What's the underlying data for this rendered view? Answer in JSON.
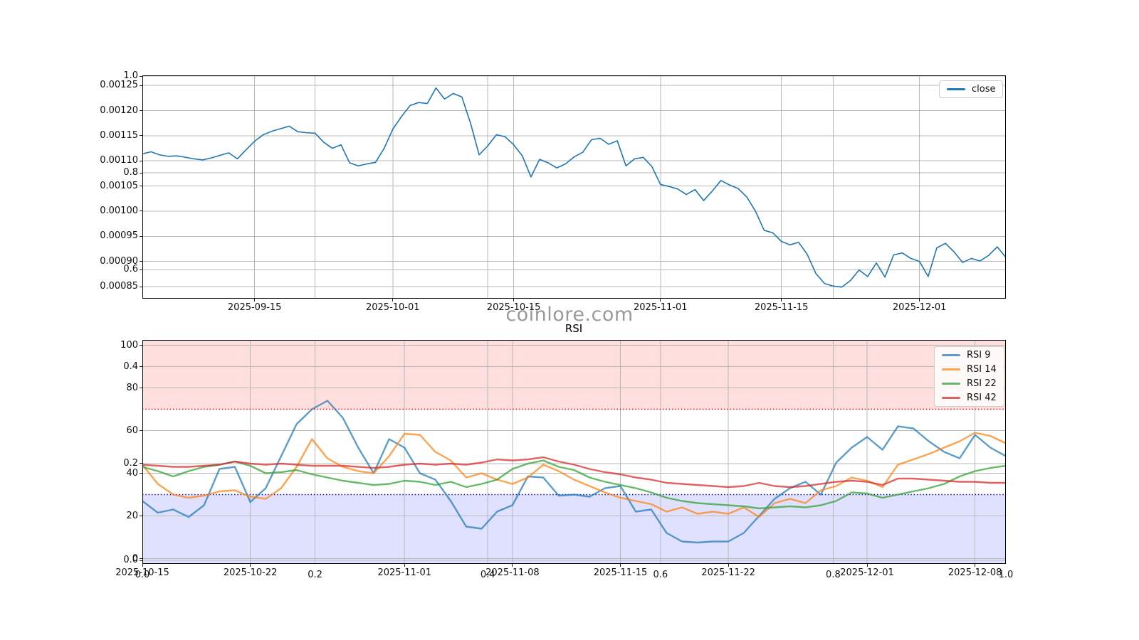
{
  "figure": {
    "background": "#ffffff"
  },
  "watermark": {
    "text": "coinlore.com",
    "color": "#9a9a9a"
  },
  "hidden_axis": {
    "x_ticks": [
      "0.0",
      "0.2",
      "0.4",
      "0.6",
      "0.8",
      "1.0"
    ],
    "y_ticks": [
      "1.0",
      "0.8",
      "0.6",
      "0.4",
      "0.2",
      "0.0"
    ]
  },
  "colors": {
    "close": "#1f77b4",
    "rsi9": "#1f77b4",
    "rsi14": "#ff7f0e",
    "rsi22": "#2ca02c",
    "rsi42": "#d62728",
    "overbought_line": "#ff0000",
    "oversold_line": "#0000cd",
    "overbought_band": "rgba(255,0,0,0.13)",
    "oversold_band": "rgba(0,0,255,0.12)",
    "grid": "#b8b8b8"
  },
  "chart_data": [
    {
      "type": "line",
      "title": "",
      "legend": [
        "close"
      ],
      "legend_position": "upper right",
      "grid": true,
      "x_start": "2025-09-02",
      "x_end": "2025-12-11",
      "x_tick_labels": [
        "2025-09-15",
        "2025-10-01",
        "2025-10-15",
        "2025-11-01",
        "2025-11-15",
        "2025-12-01"
      ],
      "y_tick_values": [
        0.00085,
        0.0009,
        0.00095,
        0.001,
        0.00105,
        0.0011,
        0.00115,
        0.0012,
        0.00125
      ],
      "y_tick_decimals": 5,
      "ylim": [
        0.000826,
        0.00127
      ],
      "series": [
        {
          "name": "close",
          "color": "#1f77b4",
          "width": 1.6,
          "opacity": 1,
          "values": [
            0.001114,
            0.001118,
            0.001112,
            0.001109,
            0.00111,
            0.001107,
            0.001104,
            0.001102,
            0.001106,
            0.001111,
            0.001116,
            0.001104,
            0.001122,
            0.001139,
            0.001152,
            0.001159,
            0.001164,
            0.001169,
            0.001158,
            0.001156,
            0.001155,
            0.001137,
            0.001125,
            0.001132,
            0.001096,
            0.00109,
            0.001094,
            0.001097,
            0.001125,
            0.001163,
            0.001188,
            0.00121,
            0.001216,
            0.001214,
            0.001245,
            0.001223,
            0.001234,
            0.001227,
            0.001175,
            0.001112,
            0.00113,
            0.001152,
            0.001148,
            0.001132,
            0.00111,
            0.001068,
            0.001103,
            0.001096,
            0.001086,
            0.001094,
            0.001108,
            0.001117,
            0.001142,
            0.001145,
            0.001133,
            0.00114,
            0.00109,
            0.001104,
            0.001107,
            0.001089,
            0.001053,
            0.001049,
            0.001044,
            0.001033,
            0.001043,
            0.001021,
            0.00104,
            0.001061,
            0.001052,
            0.001045,
            0.001028,
            0.001,
            0.000962,
            0.000957,
            0.00094,
            0.000933,
            0.000938,
            0.000914,
            0.000876,
            0.000856,
            0.000851,
            0.000849,
            0.000862,
            0.000883,
            0.00087,
            0.000897,
            0.000869,
            0.000913,
            0.000917,
            0.000906,
            0.0009,
            0.00087,
            0.000927,
            0.000936,
            0.000919,
            0.000898,
            0.000906,
            0.000901,
            0.000912,
            0.000929,
            0.000908
          ]
        }
      ]
    },
    {
      "type": "line",
      "title": "RSI",
      "legend": [
        "RSI 9",
        "RSI 14",
        "RSI 22",
        "RSI 42"
      ],
      "legend_position": "upper right",
      "grid": true,
      "x_start": "2025-10-15",
      "x_end": "2025-12-10",
      "x_tick_labels": [
        "2025-10-15",
        "2025-10-22",
        "2025-11-01",
        "2025-11-08",
        "2025-11-15",
        "2025-11-22",
        "2025-12-01",
        "2025-12-08"
      ],
      "y_tick_values": [
        0,
        20,
        40,
        60,
        80,
        100
      ],
      "y_tick_decimals": 0,
      "ylim": [
        -2.5,
        102.5
      ],
      "overbought_level": 70,
      "oversold_level": 30,
      "series": [
        {
          "name": "RSI 9",
          "color": "#1f77b4",
          "width": 2.4,
          "opacity": 0.72,
          "values": [
            27,
            21.5,
            23,
            19.5,
            25,
            42,
            43,
            26.5,
            33,
            48,
            63,
            70,
            74,
            66,
            52,
            40,
            56,
            52,
            40,
            37,
            27,
            15,
            14,
            22,
            25,
            38.5,
            38,
            29.5,
            30,
            29,
            33,
            34,
            22,
            23,
            12,
            8,
            7.5,
            8,
            8,
            12,
            20,
            28,
            33,
            36,
            30,
            45,
            52,
            57,
            51,
            62,
            61,
            55,
            50,
            47,
            58,
            52,
            48
          ]
        },
        {
          "name": "RSI 14",
          "color": "#ff7f0e",
          "width": 2.4,
          "opacity": 0.72,
          "values": [
            44,
            35,
            30,
            28.5,
            29.5,
            31.5,
            32,
            29,
            28,
            33,
            43,
            56,
            47,
            43,
            41,
            40,
            48,
            58.5,
            58,
            50,
            46,
            38,
            40,
            37,
            35,
            38,
            44,
            41,
            37,
            34,
            31,
            28.5,
            27,
            25.5,
            22,
            24,
            21,
            22,
            21,
            24,
            19.5,
            26,
            28,
            26,
            32,
            34,
            38,
            36.5,
            33.5,
            44,
            46.5,
            49,
            52,
            55,
            59,
            57.5,
            54
          ]
        },
        {
          "name": "RSI 22",
          "color": "#2ca02c",
          "width": 2.4,
          "opacity": 0.72,
          "values": [
            43,
            41,
            38.5,
            41,
            43,
            44,
            45.5,
            43.5,
            40,
            40.5,
            41.5,
            39.5,
            38,
            36.5,
            35.5,
            34.5,
            35,
            36.5,
            36,
            34.5,
            36,
            33.5,
            35,
            37,
            42,
            44.5,
            46,
            43,
            41.5,
            38,
            36,
            34.5,
            33,
            31,
            28.5,
            27,
            26,
            25.5,
            25,
            24.5,
            23.5,
            24,
            24.5,
            24,
            25,
            27,
            31,
            30.5,
            28.5,
            30,
            31.5,
            33,
            35,
            38.5,
            41,
            42.5,
            43.5
          ]
        },
        {
          "name": "RSI 42",
          "color": "#d62728",
          "width": 2.4,
          "opacity": 0.72,
          "values": [
            44,
            43.5,
            43,
            43,
            43.5,
            44,
            45.5,
            44.5,
            44,
            44.5,
            44,
            43.5,
            43.5,
            43.5,
            43,
            42.5,
            43,
            44,
            44.5,
            44,
            44.5,
            44,
            45,
            46.5,
            46,
            46.5,
            47.5,
            45.5,
            44,
            42,
            40.5,
            39.5,
            38,
            37,
            35.5,
            35,
            34.5,
            34,
            33.5,
            34,
            35.5,
            34,
            33.5,
            34,
            35,
            36,
            36.5,
            36,
            34.5,
            37.5,
            37.5,
            37,
            36.5,
            36,
            36,
            35.5,
            35.5
          ]
        }
      ]
    }
  ]
}
